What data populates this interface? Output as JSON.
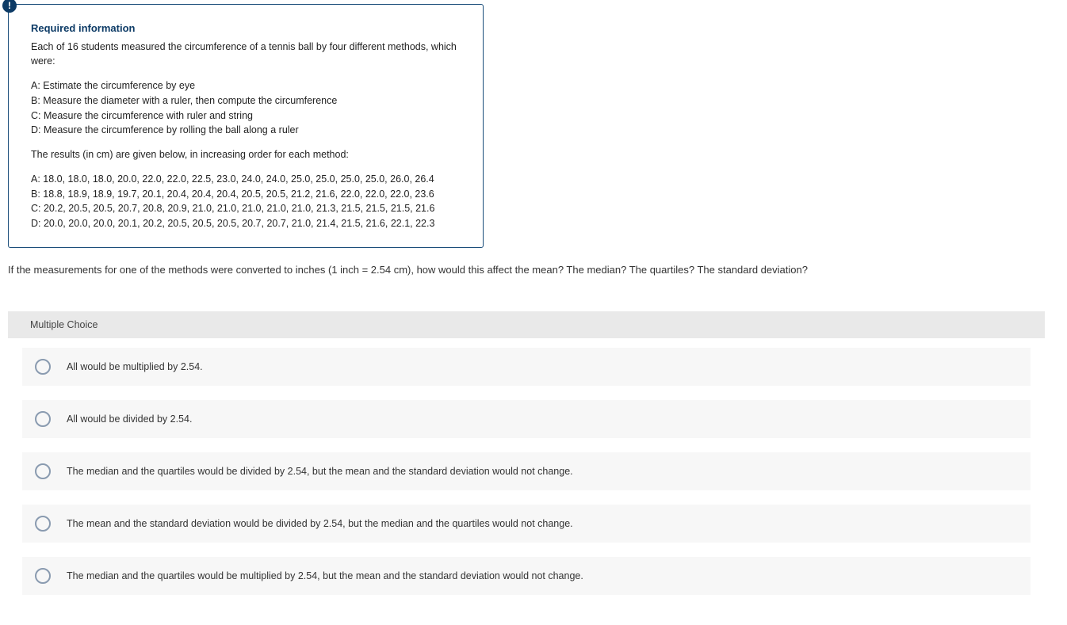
{
  "info": {
    "badge": "!",
    "header": "Required information",
    "intro": "Each of 16 students measured the circumference of a tennis ball by four different methods, which were:",
    "methods": [
      "A: Estimate the circumference by eye",
      "B: Measure the diameter with a ruler, then compute the circumference",
      "C: Measure the circumference with ruler and string",
      "D: Measure the circumference by rolling the ball along a ruler"
    ],
    "below": "The results (in cm) are given below, in increasing order for each method:",
    "data": [
      "A: 18.0, 18.0, 18.0, 20.0, 22.0, 22.0, 22.5, 23.0, 24.0, 24.0, 25.0, 25.0, 25.0, 25.0, 26.0, 26.4",
      "B: 18.8, 18.9, 18.9, 19.7, 20.1, 20.4, 20.4, 20.4, 20.5, 20.5, 21.2, 21.6, 22.0, 22.0, 22.0, 23.6",
      "C: 20.2, 20.5, 20.5, 20.7, 20.8, 20.9, 21.0, 21.0, 21.0, 21.0, 21.0, 21.3, 21.5, 21.5, 21.5, 21.6",
      "D: 20.0, 20.0, 20.0, 20.1, 20.2, 20.5, 20.5, 20.5, 20.7, 20.7, 21.0, 21.4, 21.5, 21.6, 22.1, 22.3"
    ]
  },
  "question": "If the measurements for one of the methods were converted to inches (1 inch = 2.54 cm), how would this affect the mean? The median? The quartiles? The standard deviation?",
  "mc": {
    "title": "Multiple Choice",
    "options": [
      "All would be multiplied by 2.54.",
      "All would be divided by 2.54.",
      "The median and the quartiles would be divided by 2.54, but the mean and the standard deviation would not change.",
      "The mean and the standard deviation would be divided by 2.54, but the median and the quartiles would not change.",
      "The median and the quartiles would be multiplied by 2.54, but the mean and the standard deviation would not change."
    ]
  },
  "colors": {
    "box_border": "#1a4d7a",
    "badge_bg": "#0d3b66",
    "header_bg": "#e9e9e9",
    "option_bg": "#f7f7f7",
    "radio_border": "#8a9bb0"
  }
}
